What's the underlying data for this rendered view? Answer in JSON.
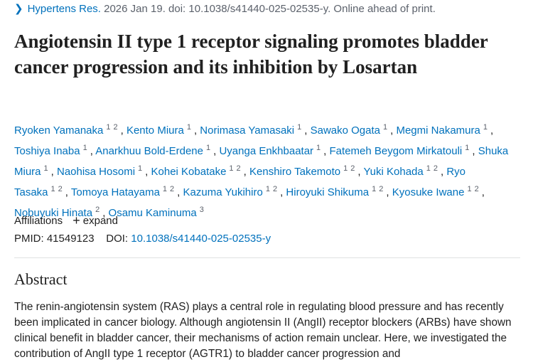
{
  "citation": {
    "journal": "Hypertens Res.",
    "details": "2026 Jan 19. doi: 10.1038/s41440-025-02535-y. Online ahead of print."
  },
  "title": "Angiotensin II type 1 receptor signaling promotes bladder cancer progression and its inhibition by Losartan",
  "author_separator": ",",
  "authors": [
    {
      "name": "Ryoken Yamanaka",
      "affiliations": [
        "1",
        "2"
      ]
    },
    {
      "name": "Kento Miura",
      "affiliations": [
        "1"
      ]
    },
    {
      "name": "Norimasa Yamasaki",
      "affiliations": [
        "1"
      ]
    },
    {
      "name": "Sawako Ogata",
      "affiliations": [
        "1"
      ]
    },
    {
      "name": "Megmi Nakamura",
      "affiliations": [
        "1"
      ]
    },
    {
      "name": "Toshiya Inaba",
      "affiliations": [
        "1"
      ]
    },
    {
      "name": "Anarkhuu Bold-Erdene",
      "affiliations": [
        "1"
      ]
    },
    {
      "name": "Uyanga Enkhbaatar",
      "affiliations": [
        "1"
      ]
    },
    {
      "name": "Fatemeh Beygom Mirkatouli",
      "affiliations": [
        "1"
      ]
    },
    {
      "name": "Shuka Miura",
      "affiliations": [
        "1"
      ]
    },
    {
      "name": "Naohisa Hosomi",
      "affiliations": [
        "1"
      ]
    },
    {
      "name": "Kohei Kobatake",
      "affiliations": [
        "1",
        "2"
      ]
    },
    {
      "name": "Kenshiro Takemoto",
      "affiliations": [
        "1",
        "2"
      ]
    },
    {
      "name": "Yuki Kohada",
      "affiliations": [
        "1",
        "2"
      ]
    },
    {
      "name": "Ryo Tasaka",
      "affiliations": [
        "1",
        "2"
      ]
    },
    {
      "name": "Tomoya Hatayama",
      "affiliations": [
        "1",
        "2"
      ]
    },
    {
      "name": "Kazuma Yukihiro",
      "affiliations": [
        "1",
        "2"
      ]
    },
    {
      "name": "Hiroyuki Shikuma",
      "affiliations": [
        "1",
        "2"
      ]
    },
    {
      "name": "Kyosuke Iwane",
      "affiliations": [
        "1",
        "2"
      ]
    },
    {
      "name": "Nobuyuki Hinata",
      "affiliations": [
        "2"
      ]
    },
    {
      "name": "Osamu Kaminuma",
      "affiliations": [
        "3"
      ]
    }
  ],
  "affiliations_label": "Affiliations",
  "expand_icon": "+",
  "expand_label": "expand",
  "identifiers": {
    "pmid_label": "PMID:",
    "pmid": "41549123",
    "doi_label": "DOI:",
    "doi": "10.1038/s41440-025-02535-y"
  },
  "abstract": {
    "heading": "Abstract",
    "text": "The renin-angiotensin system (RAS) plays a central role in regulating blood pressure and has recently been implicated in cancer biology. Although angiotensin II (AngII) receptor blockers (ARBs) have shown clinical benefit in bladder cancer, their mechanisms of action remain unclear. Here, we investigated the contribution of AngII type 1 receptor (AGTR1) to bladder cancer progression and"
  }
}
